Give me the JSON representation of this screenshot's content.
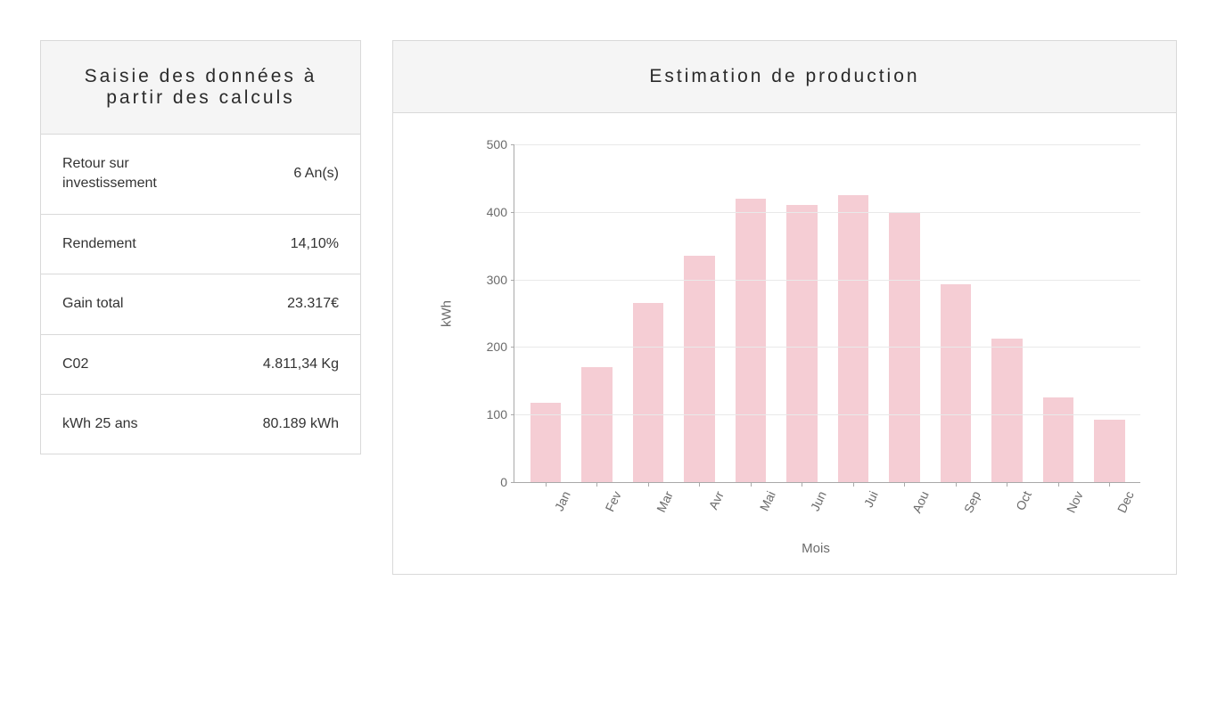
{
  "left_panel": {
    "title": "Saisie des données à partir des calculs",
    "rows": [
      {
        "label": "Retour sur investissement",
        "value": "6 An(s)"
      },
      {
        "label": "Rendement",
        "value": "14,10%"
      },
      {
        "label": "Gain total",
        "value": "23.317€"
      },
      {
        "label": "C02",
        "value": "4.811,34 Kg"
      },
      {
        "label": "kWh 25 ans",
        "value": "80.189 kWh"
      }
    ]
  },
  "chart": {
    "type": "bar",
    "title": "Estimation de production",
    "ylabel": "kWh",
    "xlabel": "Mois",
    "ylim": [
      0,
      500
    ],
    "ytick_step": 100,
    "yticks": [
      0,
      100,
      200,
      300,
      400,
      500
    ],
    "categories": [
      "Jan",
      "Fev",
      "Mar",
      "Avr",
      "Mai",
      "Jun",
      "Jui",
      "Aou",
      "Sep",
      "Oct",
      "Nov",
      "Dec"
    ],
    "values": [
      118,
      170,
      265,
      335,
      420,
      410,
      425,
      400,
      293,
      213,
      125,
      92
    ],
    "bar_color": "#f5cdd4",
    "bar_width": 0.6,
    "axis_color": "#a9a9a9",
    "grid_color": "#e9e9e9",
    "label_color": "#6b6b6b",
    "background_color": "#ffffff",
    "title_fontsize": 21,
    "label_fontsize": 15,
    "tick_fontsize": 14,
    "xtick_rotation": -65
  },
  "layout": {
    "panel_border_color": "#d9d9d9",
    "header_bg": "#f5f5f5",
    "page_bg": "#ffffff"
  }
}
